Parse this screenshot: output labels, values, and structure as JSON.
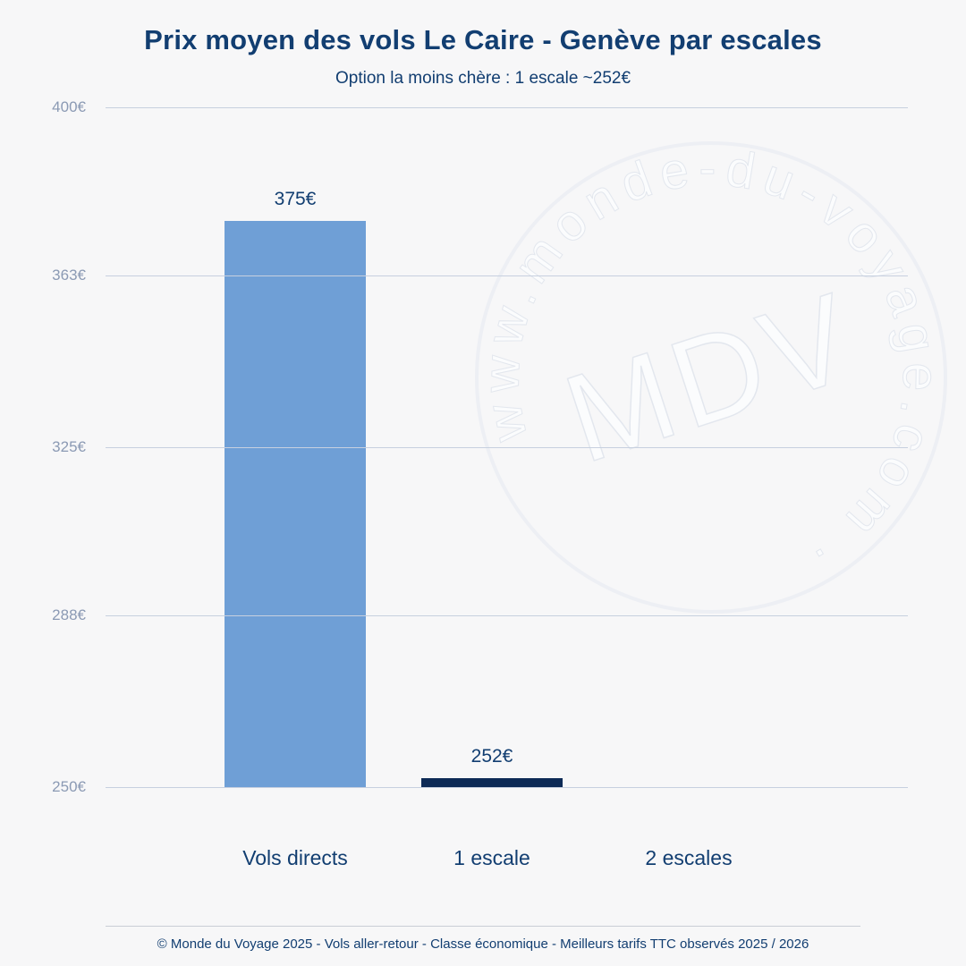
{
  "chart_data": {
    "type": "bar",
    "title": "Prix moyen des vols Le Caire - Genève par escales",
    "subtitle": "Option la moins chère : 1 escale ~252€",
    "categories": [
      "Vols directs",
      "1 escale",
      "2 escales"
    ],
    "values": [
      375,
      252,
      null
    ],
    "value_labels": [
      "375€",
      "252€",
      ""
    ],
    "y_ticks": [
      400,
      363,
      325,
      288,
      250
    ],
    "y_tick_labels": [
      "400€",
      "363€",
      "325€",
      "288€",
      "250€"
    ],
    "ylim": [
      250,
      400
    ],
    "bar_colors": [
      "#6f9fd6",
      "#0d2a56",
      "#6f9fd6"
    ],
    "grid": true,
    "legend": "none"
  },
  "watermark": {
    "circle_text": "www.monde-du-voyage.com ·",
    "center_text": "MDV"
  },
  "footer": {
    "text": "© Monde du Voyage 2025 - Vols aller-retour - Classe économique - Meilleurs tarifs TTC observés 2025 / 2026"
  },
  "colors": {
    "title": "#123e71",
    "axis_label": "#8b9ab4",
    "gridline": "#c7d0df",
    "background": "#f7f7f8",
    "bar_direct": "#6f9fd6",
    "bar_one_stop": "#0d2a56"
  }
}
